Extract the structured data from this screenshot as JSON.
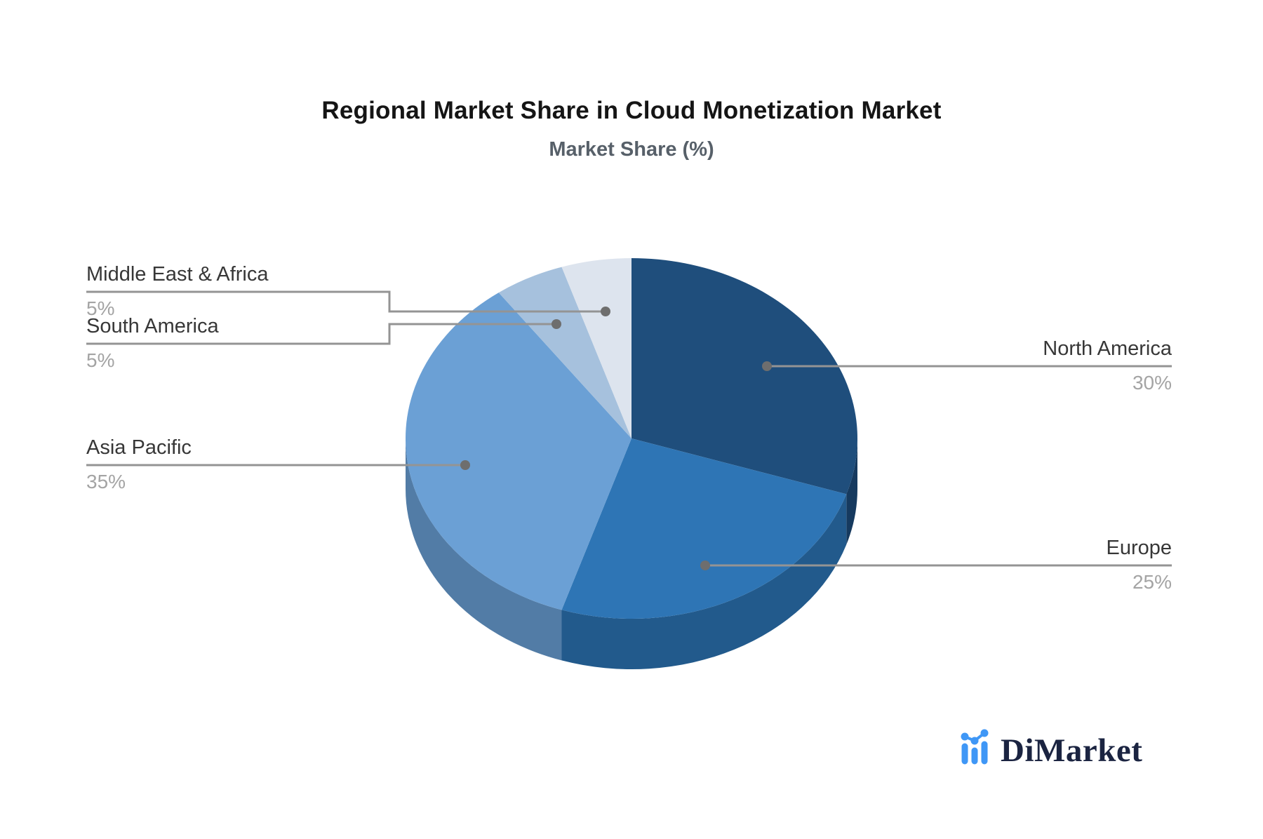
{
  "title": "Regional Market Share in Cloud Monetization Market",
  "subtitle": "Market Share (%)",
  "logo": {
    "text": "DiMarket",
    "icon": "bar-line-chart-icon"
  },
  "chart_data": {
    "type": "pie",
    "style": "3d",
    "title": "Regional Market Share in Cloud Monetization Market",
    "subtitle": "Market Share (%)",
    "unit": "%",
    "direction": "clockwise",
    "start_angle_deg": 0,
    "legend_position": "none",
    "series": [
      {
        "label": "North America",
        "value": 30,
        "display": "30%",
        "color": "#1f4e7c",
        "side_color": "#163a5f"
      },
      {
        "label": "Europe",
        "value": 25,
        "display": "25%",
        "color": "#2e75b5",
        "side_color": "#225a8c"
      },
      {
        "label": "Asia Pacific",
        "value": 35,
        "display": "35%",
        "color": "#6ba0d5",
        "side_color": "#527ca6"
      },
      {
        "label": "South America",
        "value": 5,
        "display": "5%",
        "color": "#a6c1dd",
        "side_color": "#7f9cbd"
      },
      {
        "label": "Middle East & Africa",
        "value": 5,
        "display": "5%",
        "color": "#dde4ee",
        "side_color": "#b5c4d6"
      }
    ]
  },
  "colors": {
    "background": "#ffffff",
    "title": "#151515",
    "subtitle": "#576069",
    "label_text": "#373737",
    "value_text": "#a4a4a4",
    "leader_line": "#949494",
    "leader_dot": "#6e6e6e",
    "logo_text": "#1b2441",
    "logo_icon": "#3f97f6"
  }
}
